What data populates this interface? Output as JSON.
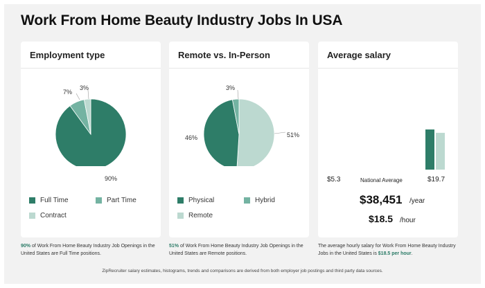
{
  "page_title": "Work From Home Beauty Industry Jobs In USA",
  "colors": {
    "dark_green": "#2e7d68",
    "mid_green": "#74b3a2",
    "light_green": "#bcd9d0"
  },
  "employment": {
    "heading": "Employment type",
    "slices": [
      {
        "label": "Full Time",
        "value": 90,
        "pct_label": "90%",
        "color": "#2e7d68"
      },
      {
        "label": "Part Time",
        "value": 7,
        "pct_label": "7%",
        "color": "#74b3a2"
      },
      {
        "label": "Contract",
        "value": 3,
        "pct_label": "3%",
        "color": "#bcd9d0"
      }
    ],
    "footnote_highlight": "90%",
    "footnote_text": " of Work From Home Beauty Industry Job Openings in the United States are Full Time positions."
  },
  "remote": {
    "heading": "Remote vs. In-Person",
    "slices": [
      {
        "label": "Physical",
        "value": 46,
        "pct_label": "46%",
        "color": "#2e7d68"
      },
      {
        "label": "Hybrid",
        "value": 3,
        "pct_label": "3%",
        "color": "#74b3a2"
      },
      {
        "label": "Remote",
        "value": 51,
        "pct_label": "51%",
        "color": "#bcd9d0"
      }
    ],
    "footnote_highlight": "51%",
    "footnote_text": " of Work From Home Beauty Industry Job Openings in the United States are Remote positions."
  },
  "salary": {
    "heading": "Average salary",
    "low_label": "$5.3",
    "natl_label": "National Average",
    "high_label": "$19.7",
    "annual": "$38,451",
    "annual_unit": "/year",
    "hourly": "$18.5",
    "hourly_unit": "/hour",
    "footnote_text": "The average hourly salary for Work From Home Beauty Industry Jobs in the United States is ",
    "footnote_highlight": "$18.5 per hour",
    "footnote_end": "."
  },
  "chart_data": [
    {
      "type": "pie",
      "title": "Employment type",
      "categories": [
        "Full Time",
        "Part Time",
        "Contract"
      ],
      "values": [
        90,
        7,
        3
      ]
    },
    {
      "type": "pie",
      "title": "Remote vs. In-Person",
      "categories": [
        "Physical",
        "Hybrid",
        "Remote"
      ],
      "values": [
        46,
        3,
        51
      ]
    },
    {
      "type": "bar",
      "title": "Average salary",
      "categories": [
        "Work From Home Beauty Industry",
        "National Average"
      ],
      "values": [
        18.5,
        17.4
      ],
      "ylim": [
        5.3,
        19.7
      ]
    }
  ],
  "disclaimer": "ZipRecruiter salary estimates, histograms, trends and comparisons are derived from both employer job postings and third party data sources."
}
